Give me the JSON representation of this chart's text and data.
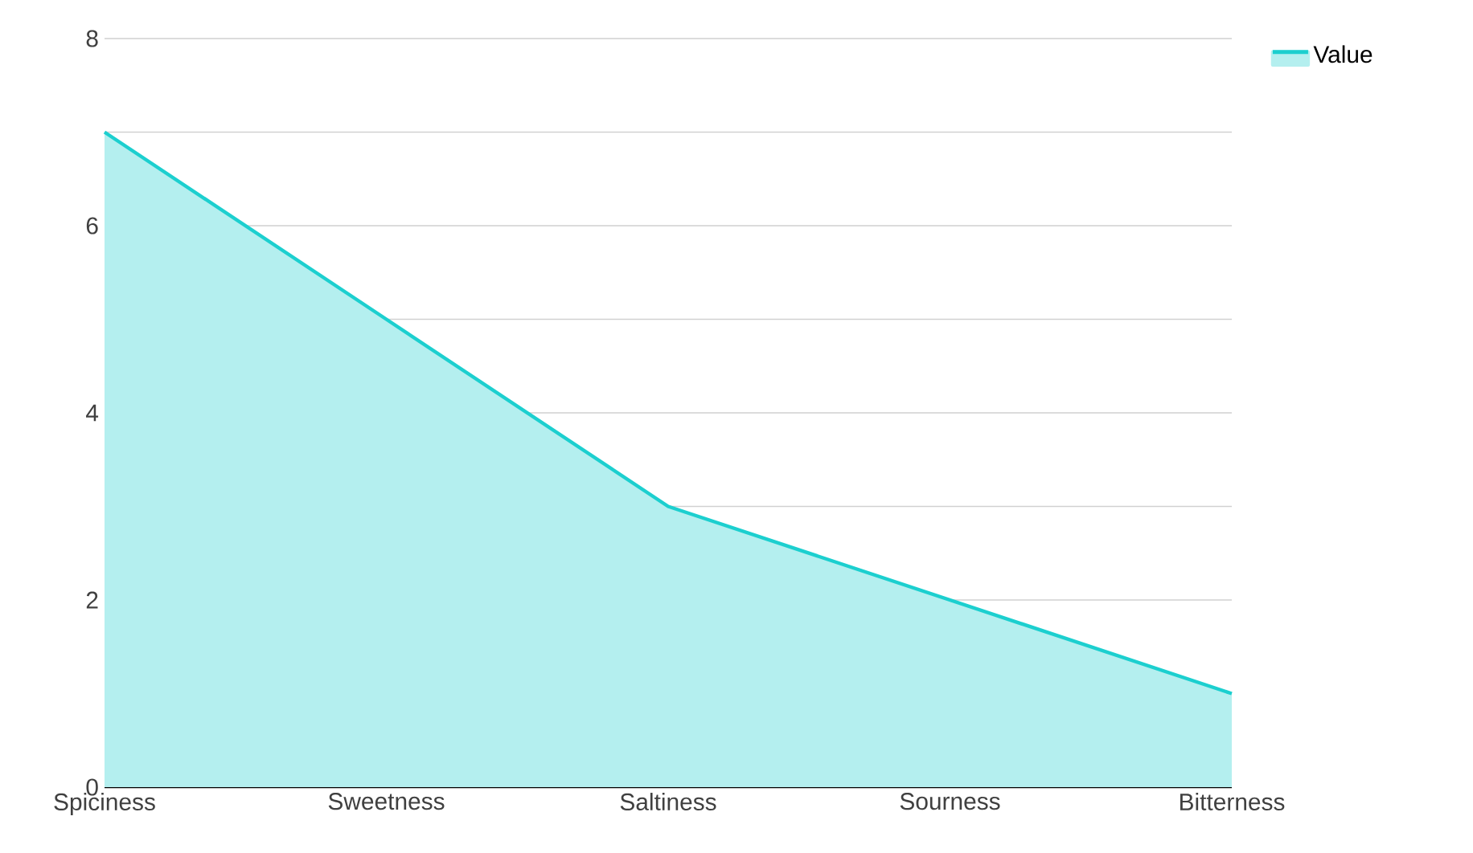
{
  "chart_data": {
    "type": "area",
    "categories": [
      "Spiciness",
      "Sweetness",
      "Saltiness",
      "Sourness",
      "Bitterness"
    ],
    "series": [
      {
        "name": "Value",
        "color": "#1ccfcf",
        "values": [
          7,
          5,
          3,
          2,
          1
        ]
      }
    ],
    "ylim": [
      0,
      8
    ],
    "yticks": [
      0,
      {
        "value": 1,
        "label": null
      },
      2,
      {
        "value": 3,
        "label": null
      },
      4,
      {
        "value": 5,
        "label": null
      },
      6,
      {
        "value": 7,
        "label": null
      },
      8
    ],
    "grid": "y",
    "legend": "top right"
  }
}
